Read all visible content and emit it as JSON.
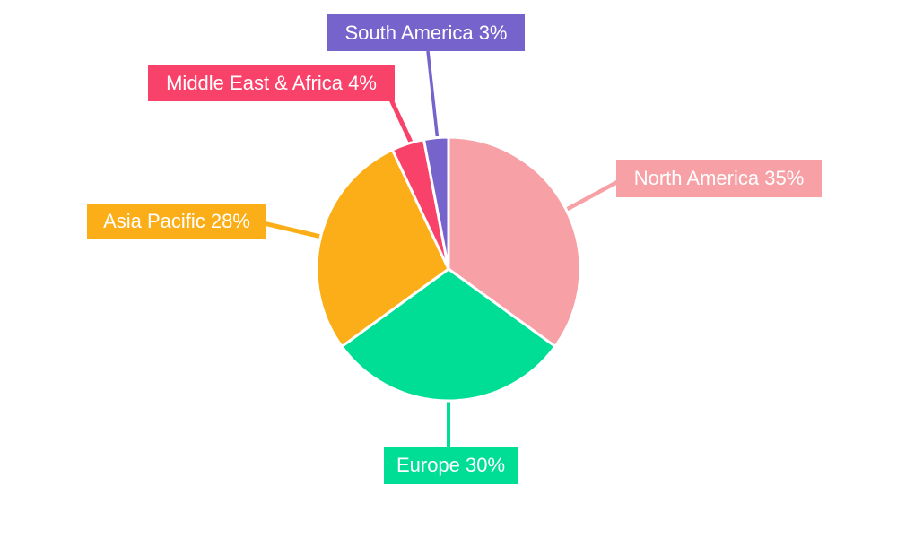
{
  "chart_data": {
    "type": "pie",
    "title": "",
    "unit": "%",
    "start_angle_deg": 0,
    "direction": "clockwise",
    "legend_position": "callout-labels",
    "categories": [
      "North America",
      "Europe",
      "Asia Pacific",
      "Middle East & Africa",
      "South America"
    ],
    "values": [
      35,
      30,
      28,
      4,
      3
    ],
    "slices": [
      {
        "label": "North America",
        "value": 35,
        "display": "North America 35%",
        "color": "#F7A1A7"
      },
      {
        "label": "Europe",
        "value": 30,
        "display": "Europe 30%",
        "color": "#00DE95"
      },
      {
        "label": "Asia Pacific",
        "value": 28,
        "display": "Asia Pacific 28%",
        "color": "#FBAE17"
      },
      {
        "label": "Middle East & Africa",
        "value": 4,
        "display": "Middle East & Africa 4%",
        "color": "#F9426A"
      },
      {
        "label": "South America",
        "value": 3,
        "display": "South America 3%",
        "color": "#7763CC"
      }
    ],
    "colors": {
      "background": "#ffffff",
      "slice_border": "#ffffff",
      "label_text": "#ffffff"
    }
  }
}
